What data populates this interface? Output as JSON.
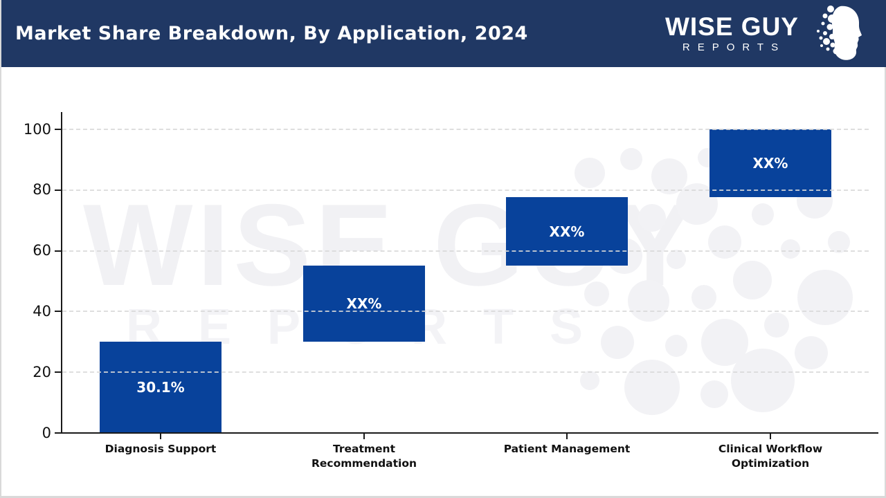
{
  "header": {
    "title": "Market Share Breakdown, By Application, 2024",
    "logo": {
      "line1": "WISE GUY",
      "line2": "REPORTS"
    }
  },
  "watermark": {
    "line1": "WISE GUY",
    "line2": "REPORTS"
  },
  "chart_data": {
    "type": "bar",
    "variant": "waterfall-stacked-percentage",
    "title": "Market Share Breakdown, By Application, 2024",
    "categories": [
      [
        "Diagnosis Support"
      ],
      [
        "Treatment",
        "Recommendation"
      ],
      [
        "Patient Management"
      ],
      [
        "Clinical Workflow",
        "Optimization"
      ]
    ],
    "segments": [
      {
        "category": "Diagnosis Support",
        "start": 0,
        "end": 30.1,
        "label": "30.1%"
      },
      {
        "category": "Treatment Recommendation",
        "start": 30.1,
        "end": 55.1,
        "label": "XX%"
      },
      {
        "category": "Patient Management",
        "start": 55.1,
        "end": 77.7,
        "label": "XX%"
      },
      {
        "category": "Clinical Workflow Optimization",
        "start": 77.7,
        "end": 100,
        "label": "XX%"
      }
    ],
    "y_ticks": [
      0,
      20,
      40,
      60,
      80,
      100
    ],
    "ylim": [
      0,
      100
    ],
    "xlabel": "",
    "ylabel": "",
    "grid": "horizontal-dashed",
    "legend": "none",
    "bar_color": "#08429b",
    "bar_label_color": "#ffffff",
    "grid_color": "#d9d9d9",
    "axis_color": "#1a1a1a",
    "header_bg_color": "#203864",
    "watermark_color": "#f1f1f4"
  }
}
